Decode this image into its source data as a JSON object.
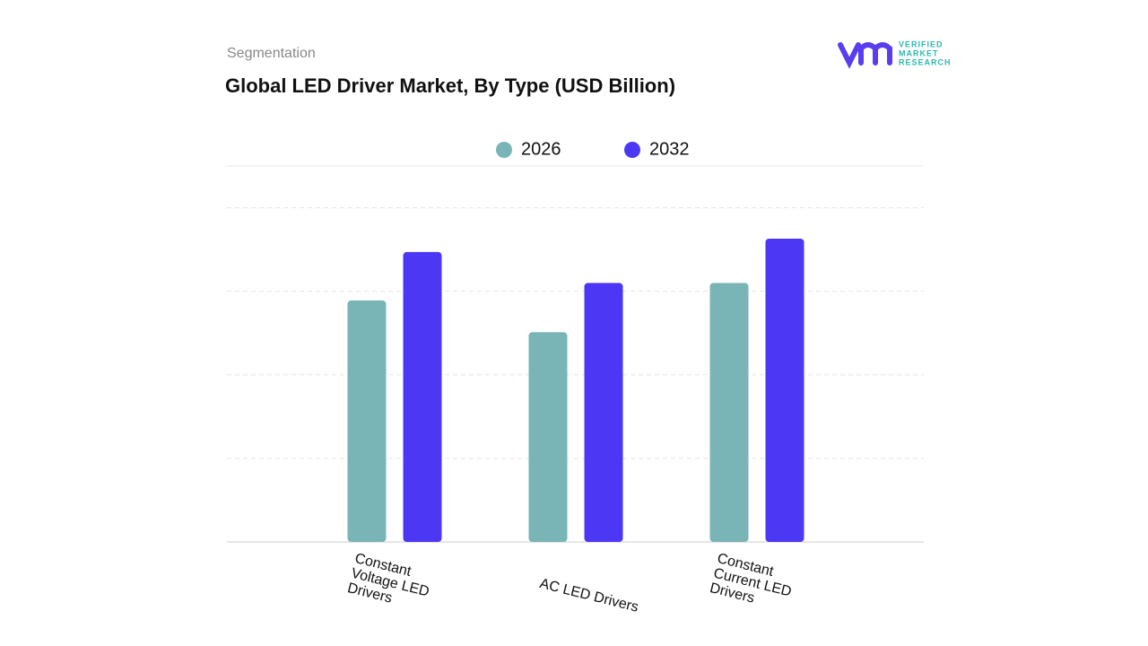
{
  "chart_data": {
    "type": "bar",
    "subtitle": "Segmentation",
    "title": "Global LED Driver Market, By Type (USD Billion)",
    "logo_text": [
      "VERIFIED",
      "MARKET",
      "RESEARCH"
    ],
    "categories": [
      "Constant Voltage LED Drivers",
      "AC LED Drivers",
      "Constant Current LED Drivers"
    ],
    "series": [
      {
        "name": "2026",
        "color": "#79b4b7",
        "values": [
          2.89,
          2.51,
          3.1
        ]
      },
      {
        "name": "2032",
        "color": "#4c37f5",
        "values": [
          3.47,
          3.1,
          3.63
        ]
      }
    ],
    "ylim": [
      0,
      4.5
    ],
    "yticks": [
      0,
      1,
      2,
      3,
      4
    ],
    "grid": true
  }
}
